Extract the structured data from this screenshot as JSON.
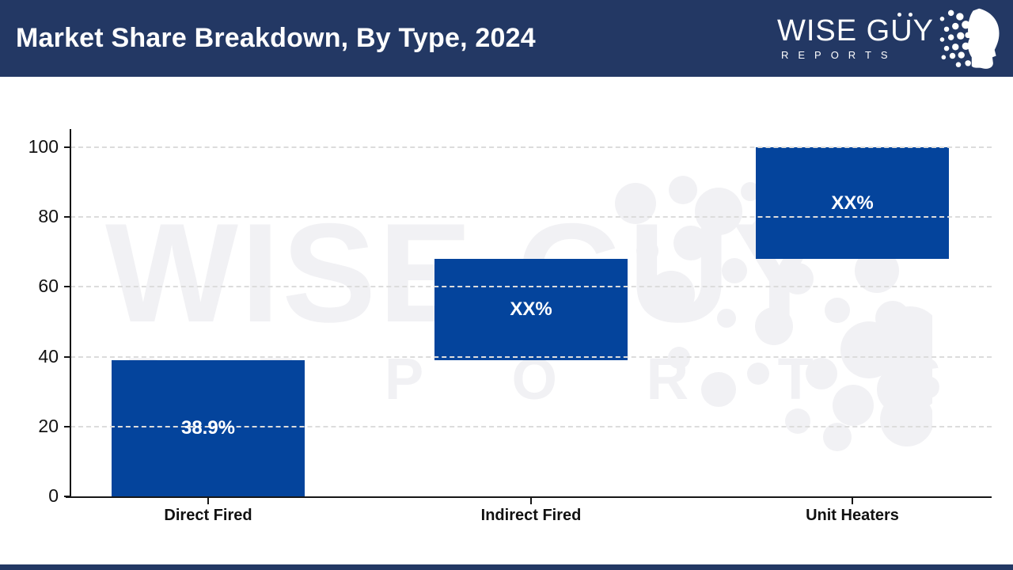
{
  "header": {
    "title": "Market Share Breakdown, By Type, 2024",
    "bg_color": "#233864",
    "logo": {
      "line1": "WISE GUY",
      "line2": "REPORTS"
    }
  },
  "watermark": {
    "line1": "WISE GUY",
    "line2": "R E P O R T S"
  },
  "chart_data": {
    "type": "bar",
    "variant": "waterfall",
    "title": "Market Share Breakdown, By Type, 2024",
    "categories": [
      "Direct Fired",
      "Indirect Fired",
      "Unit Heaters"
    ],
    "segments": [
      {
        "category": "Direct Fired",
        "label": "38.9%",
        "start": 0,
        "end": 38.9
      },
      {
        "category": "Indirect Fired",
        "label": "XX%",
        "start": 38.9,
        "end": 68
      },
      {
        "category": "Unit Heaters",
        "label": "XX%",
        "start": 68,
        "end": 100
      }
    ],
    "y_ticks": [
      0,
      20,
      40,
      60,
      80,
      100
    ],
    "ylim": [
      0,
      107
    ],
    "xlabel": "",
    "ylabel": "",
    "legend": null,
    "grid": "horizontal-dashed",
    "grid_color": "#dcdcdc",
    "bar_color": "#04449C",
    "label_color": "#ffffff"
  }
}
